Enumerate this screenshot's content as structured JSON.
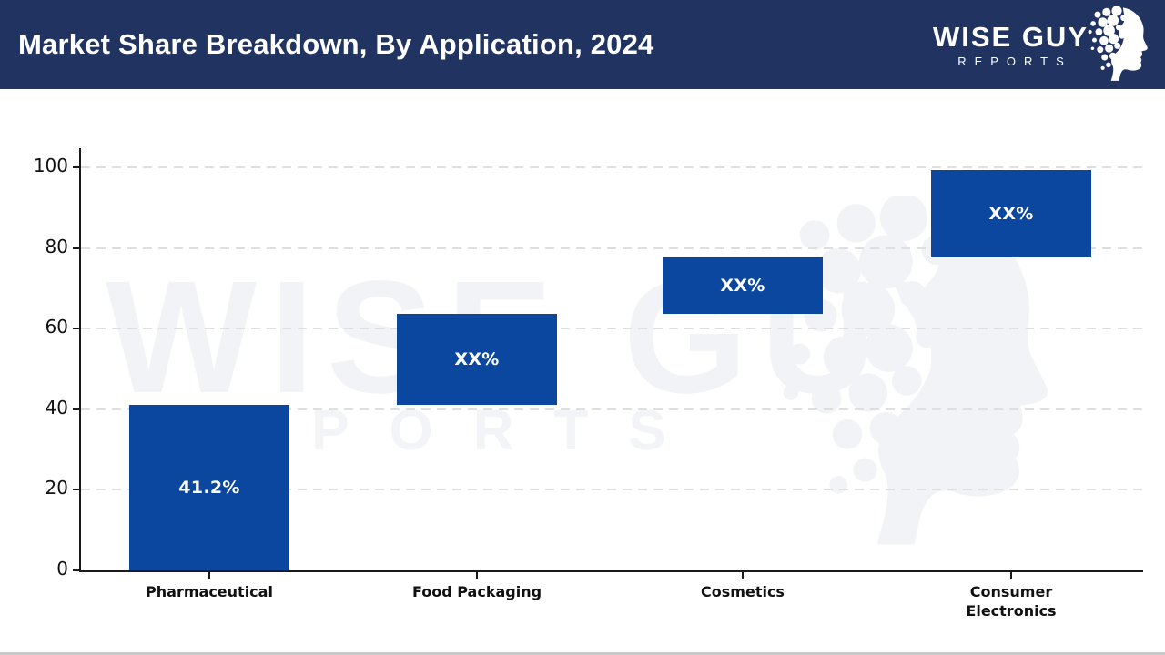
{
  "header": {
    "title": "Market Share Breakdown, By Application, 2024",
    "bg_color": "#213461",
    "logo": {
      "line1": "WISE GUY",
      "line2": "REPORTS"
    }
  },
  "watermark": {
    "line1": "WISE GUY",
    "line2": "REPORTS"
  },
  "chart_data": {
    "type": "bar",
    "subtype": "waterfall",
    "title": "Market Share Breakdown, By Application, 2024",
    "categories": [
      "Pharmaceutical",
      "Food Packaging",
      "Cosmetics",
      "Consumer Electronics"
    ],
    "segments": [
      {
        "category": "Pharmaceutical",
        "start": 0,
        "end": 41.2,
        "label": "41.2%"
      },
      {
        "category": "Food Packaging",
        "start": 41.2,
        "end": 63.8,
        "label": "XX%"
      },
      {
        "category": "Cosmetics",
        "start": 63.8,
        "end": 77.8,
        "label": "XX%"
      },
      {
        "category": "Consumer Electronics",
        "start": 77.8,
        "end": 99.5,
        "label": "XX%"
      }
    ],
    "yticks": [
      0,
      20,
      40,
      60,
      80,
      100
    ],
    "ylim": [
      0,
      104.5
    ],
    "xlabel": "",
    "ylabel": "",
    "grid": "horizontal-dashed",
    "legend": "none",
    "bar_color": "#0b479e",
    "bar_label_color": "#ffffff",
    "gridline_color": "#dfdfdf",
    "axis_color": "#1a1a1a"
  }
}
